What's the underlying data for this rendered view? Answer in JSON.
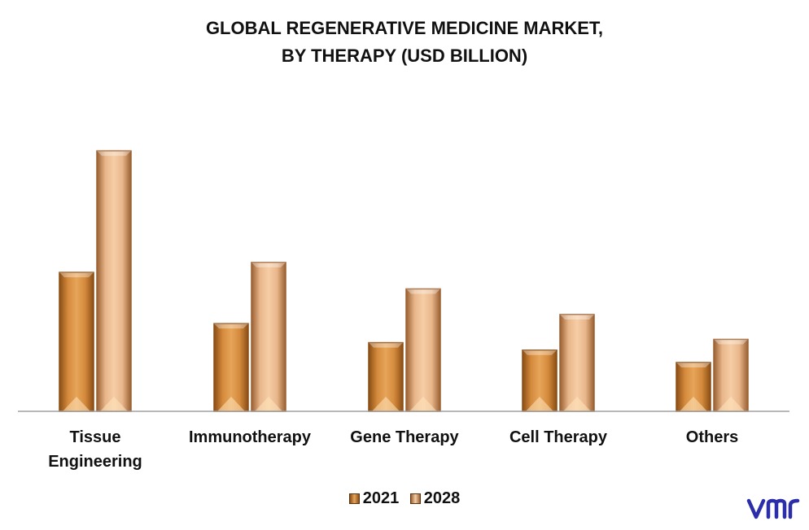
{
  "title_line1": "GLOBAL REGENERATIVE MEDICINE MARKET,",
  "title_line2": "BY THERAPY (USD BILLION)",
  "colors": {
    "s2021_light": "#e7a55a",
    "s2021_dark": "#8a4d14",
    "s2028_light": "#f6cda6",
    "s2028_dark": "#9a6032",
    "axis": "#a0a0a0",
    "logo": "#2b2ea8"
  },
  "chart_data": {
    "type": "bar",
    "title": "GLOBAL REGENERATIVE MEDICINE MARKET, BY THERAPY (USD BILLION)",
    "categories": [
      "Tissue Engineering",
      "Immunotherapy",
      "Gene Therapy",
      "Cell Therapy",
      "Others"
    ],
    "category_lines": [
      [
        "Tissue",
        "Engineering"
      ],
      [
        "Immunotherapy"
      ],
      [
        "Gene Therapy"
      ],
      [
        "Cell Therapy"
      ],
      [
        "Others"
      ]
    ],
    "series": [
      {
        "name": "2021",
        "values": [
          16.8,
          10.6,
          8.3,
          7.4,
          5.9
        ]
      },
      {
        "name": "2028",
        "values": [
          31.5,
          18.0,
          14.8,
          11.7,
          8.7
        ]
      }
    ],
    "ylim": [
      0,
      35
    ],
    "grid": false,
    "legend_position": "bottom"
  },
  "logo_text": "vmr"
}
